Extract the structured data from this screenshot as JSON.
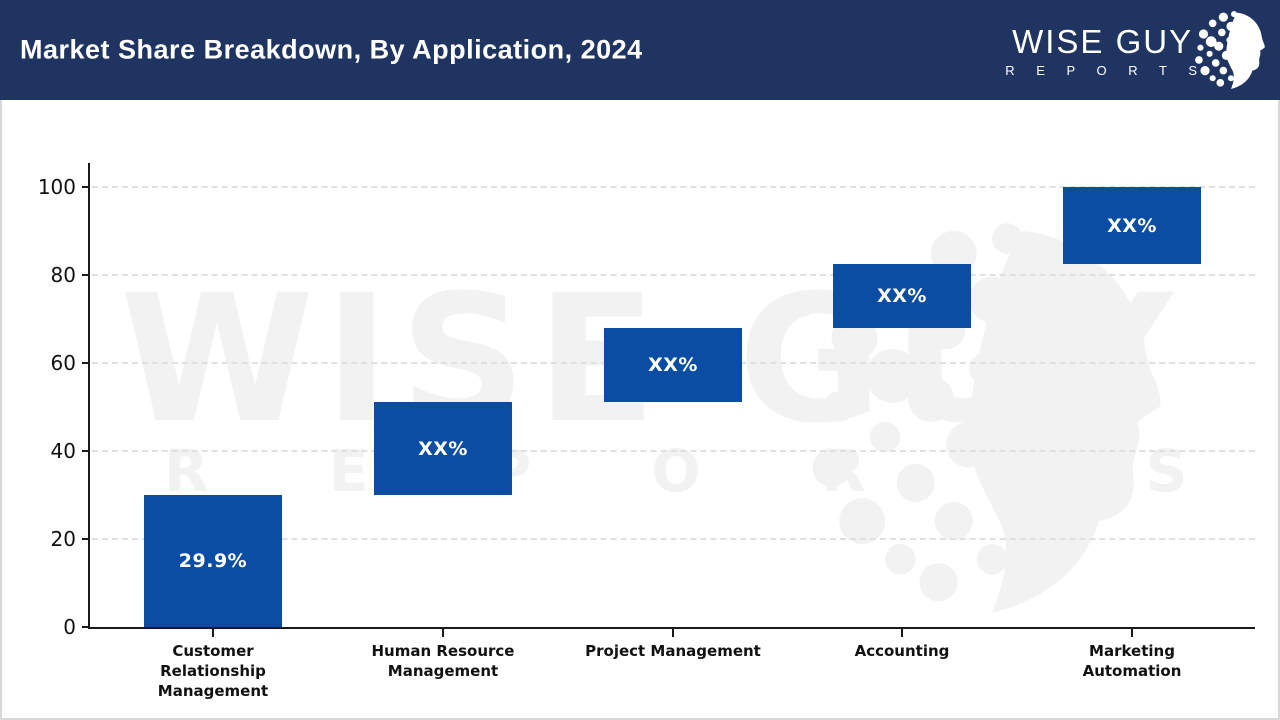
{
  "header": {
    "title": "Market Share Breakdown, By Application, 2024",
    "logo": {
      "primary": "WISE GUY",
      "secondary": "R E P O R T S"
    }
  },
  "watermark": {
    "primary": "WISE GUY",
    "secondary": "R E P O R T S"
  },
  "chart_data": {
    "type": "bar",
    "variant": "floating-waterfall",
    "title": "Market Share Breakdown, By Application, 2024",
    "xlabel": "",
    "ylabel": "",
    "ylim": [
      0,
      105
    ],
    "yticks": [
      0,
      20,
      40,
      60,
      80,
      100
    ],
    "grid": {
      "horizontal": true,
      "style": "dashed"
    },
    "legend": "none",
    "categories": [
      "Customer Relationship Management",
      "Human Resource Management",
      "Project Management",
      "Accounting",
      "Marketing Automation"
    ],
    "category_lines": [
      [
        "Customer",
        "Relationship",
        "Management"
      ],
      [
        "Human Resource",
        "Management"
      ],
      [
        "Project Management"
      ],
      [
        "Accounting"
      ],
      [
        "Marketing",
        "Automation"
      ]
    ],
    "bars": [
      {
        "category": "Customer Relationship Management",
        "label": "29.9%",
        "start": 0,
        "end": 29.9
      },
      {
        "category": "Human Resource Management",
        "label": "XX%",
        "start": 29.9,
        "end": 51.1
      },
      {
        "category": "Project Management",
        "label": "XX%",
        "start": 51.1,
        "end": 68.0
      },
      {
        "category": "Accounting",
        "label": "XX%",
        "start": 68.0,
        "end": 82.5
      },
      {
        "category": "Marketing Automation",
        "label": "XX%",
        "start": 82.5,
        "end": 100.0
      }
    ]
  },
  "colors": {
    "header_bg": "#1f3461",
    "bar": "#0b4da2",
    "axis": "#1a1a1a",
    "grid": "#e0e0e0",
    "watermark": "#f2f2f2",
    "figure_border": "#d8d8d8"
  }
}
